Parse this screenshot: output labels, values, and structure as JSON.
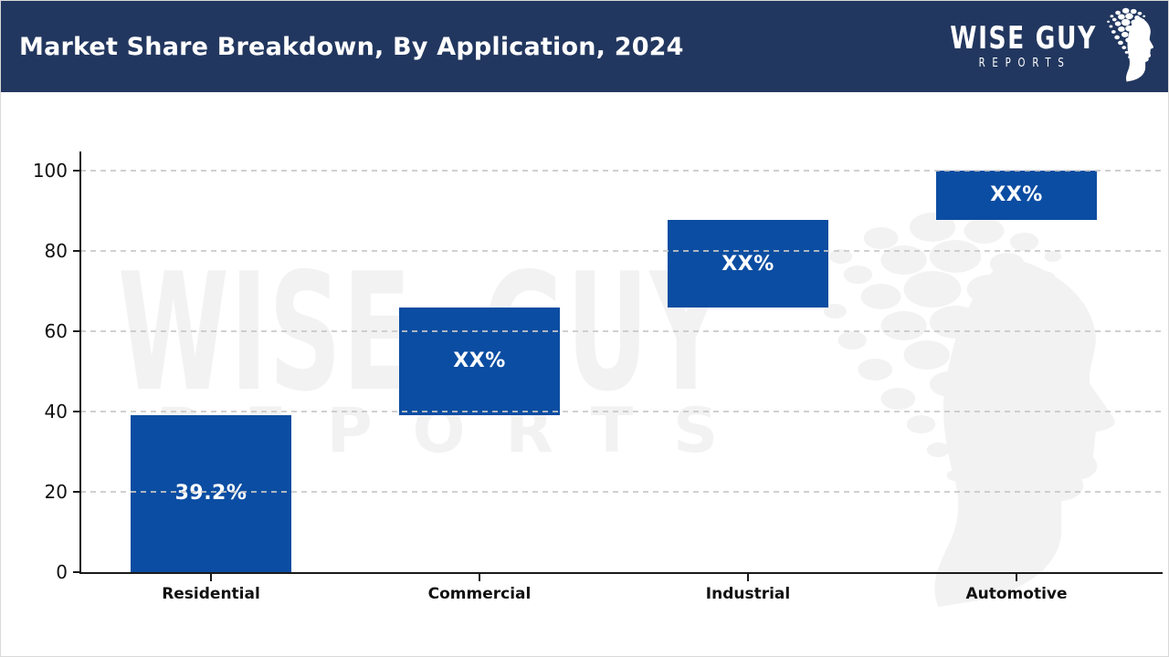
{
  "header": {
    "title": "Market Share Breakdown, By Application, 2024",
    "logo": {
      "line1": "WISE GUY",
      "line2": "REPORTS"
    }
  },
  "watermark": {
    "line1": "WISE GUY",
    "line2": "REPORTS"
  },
  "colors": {
    "header_bg": "#22375f",
    "bar": "#0b4da2",
    "grid": "#cccccc",
    "axis": "#1a1a1a",
    "bar_label": "#ffffff",
    "watermark": "#f2f2f2"
  },
  "chart_data": {
    "type": "bar",
    "subtype": "floating-waterfall",
    "title": "Market Share Breakdown, By Application, 2024",
    "categories": [
      "Residential",
      "Commercial",
      "Industrial",
      "Automotive"
    ],
    "bars": [
      {
        "category": "Residential",
        "label": "39.2%",
        "start": 0,
        "end": 39.2
      },
      {
        "category": "Commercial",
        "label": "XX%",
        "start": 39.2,
        "end": 65.8
      },
      {
        "category": "Industrial",
        "label": "XX%",
        "start": 65.8,
        "end": 87.8
      },
      {
        "category": "Automotive",
        "label": "XX%",
        "start": 87.8,
        "end": 100
      }
    ],
    "ylabel": "",
    "xlabel": "",
    "ylim": [
      0,
      104.5
    ],
    "yticks": [
      0,
      20,
      40,
      60,
      80,
      100
    ],
    "grid": "horizontal dashed",
    "legend": "none",
    "bar_color": "#0b4da2",
    "value_label_color": "#ffffff"
  }
}
